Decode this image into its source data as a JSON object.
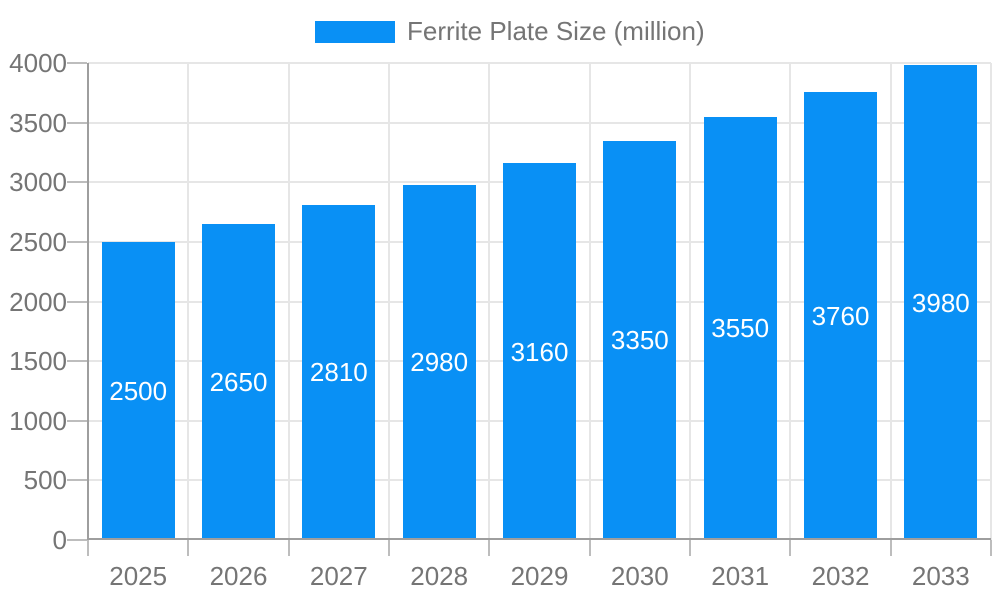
{
  "legend": {
    "label": "Ferrite Plate Size (million)"
  },
  "chart_data": {
    "type": "bar",
    "title": "Ferrite Plate Size (million)",
    "categories": [
      "2025",
      "2026",
      "2027",
      "2028",
      "2029",
      "2030",
      "2031",
      "2032",
      "2033"
    ],
    "values": [
      2500,
      2650,
      2810,
      2980,
      3160,
      3350,
      3550,
      3760,
      3980
    ],
    "xlabel": "",
    "ylabel": "",
    "ylim": [
      0,
      4000
    ],
    "yticks": [
      0,
      500,
      1000,
      1500,
      2000,
      2500,
      3000,
      3500,
      4000
    ],
    "grid": true,
    "legend_position": "top",
    "bar_labels_inside": true,
    "colors": {
      "bar": "#0990f5",
      "bar_label": "#ffffff",
      "axis_text": "#757575",
      "grid": "#e6e6e6",
      "axis_line": "#9e9e9e",
      "tick": "#bdbdbd",
      "background": "#ffffff"
    }
  }
}
